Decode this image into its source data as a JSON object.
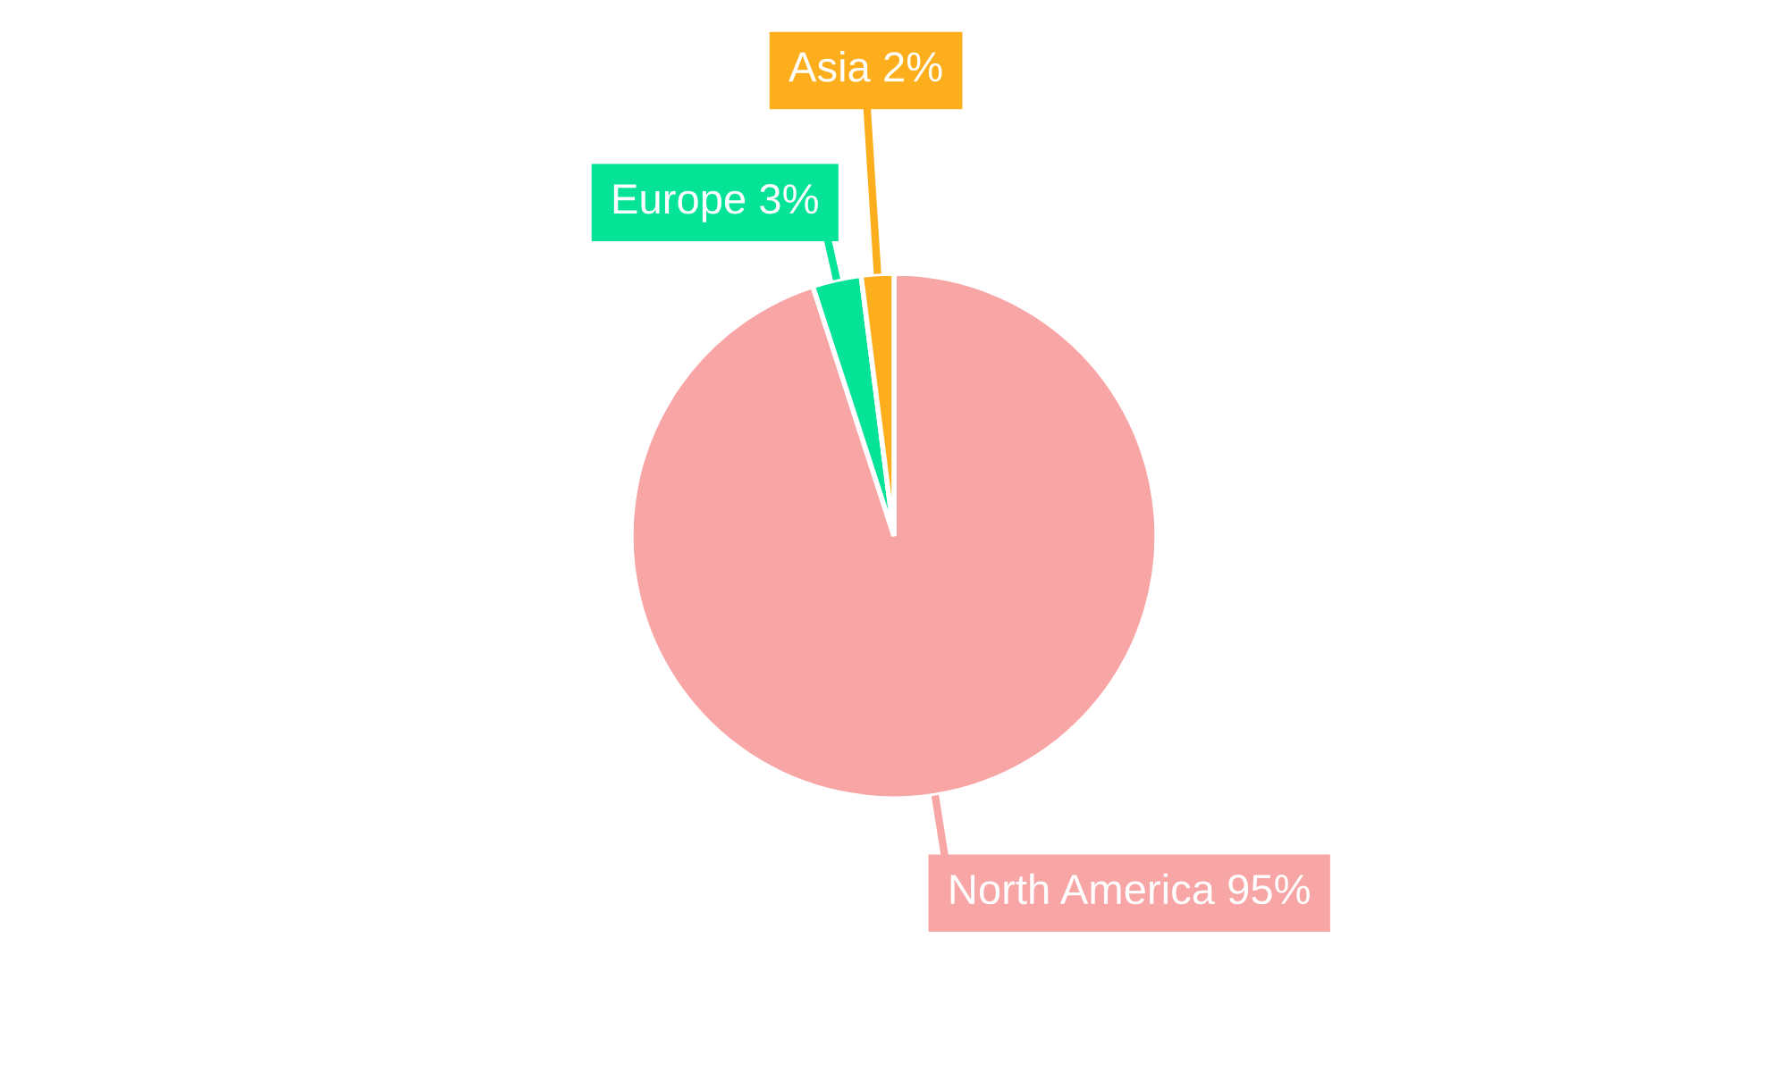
{
  "chart_data": {
    "type": "pie",
    "categories": [
      "North America",
      "Europe",
      "Asia"
    ],
    "values": [
      95,
      3,
      2
    ],
    "value_labels": [
      "95%",
      "3%",
      "2%"
    ],
    "colors": [
      "#f8a5a6",
      "#05e396",
      "#fdae1d"
    ]
  }
}
